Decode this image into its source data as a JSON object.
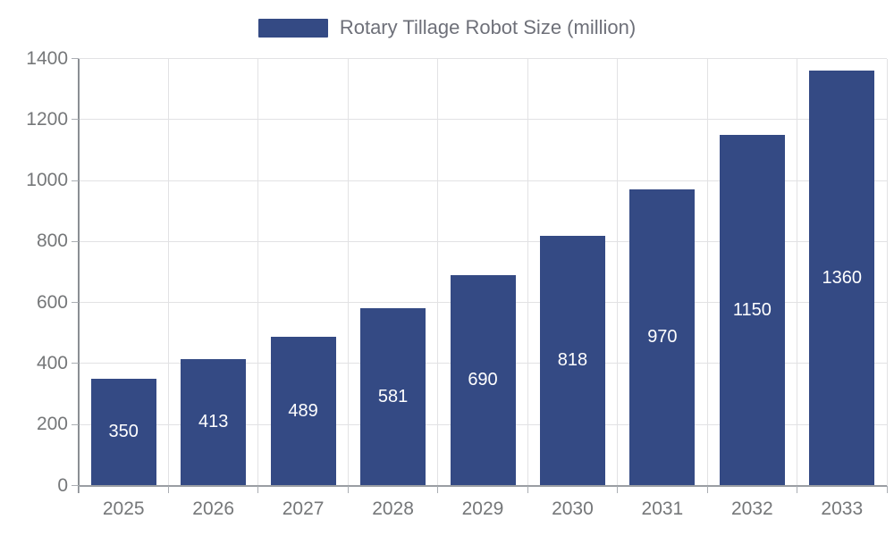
{
  "chart_data": {
    "type": "bar",
    "title": "",
    "legend": "Rotary Tillage Robot Size (million)",
    "categories": [
      "2025",
      "2026",
      "2027",
      "2028",
      "2029",
      "2030",
      "2031",
      "2032",
      "2033"
    ],
    "values": [
      350,
      413,
      489,
      581,
      690,
      818,
      970,
      1150,
      1360
    ],
    "xlabel": "",
    "ylabel": "",
    "ylim": [
      0,
      1400
    ],
    "ytick_interval": 200,
    "yticks": [
      0,
      200,
      400,
      600,
      800,
      1000,
      1200,
      1400
    ],
    "grid": true,
    "legend_position": "top-center",
    "value_labels": "inside-center"
  },
  "colors": {
    "bar": "#344a84",
    "bar_value_label": "#ffffff",
    "gridline": "#e2e2e4",
    "y_axis_line": "#8a8e93",
    "x_axis_line": "#9a9ea3",
    "tick": "#aaaeb3",
    "axis_label": "#757779",
    "legend_text": "#6e7079",
    "background": "#ffffff"
  }
}
